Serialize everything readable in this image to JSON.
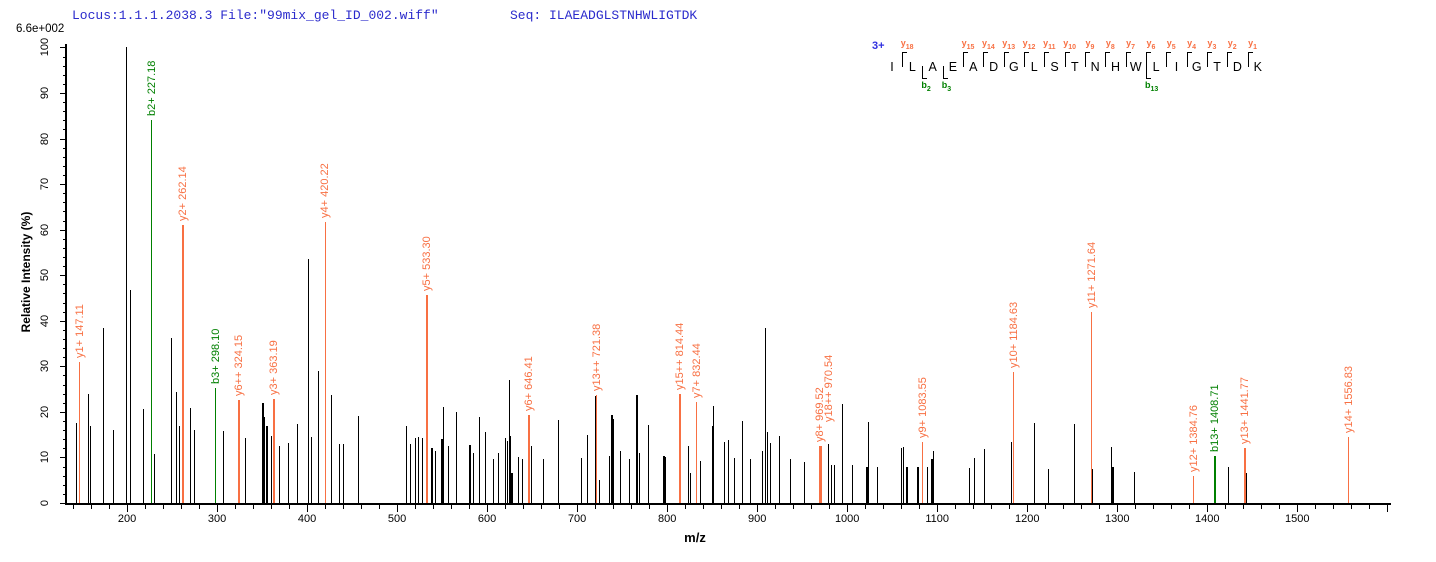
{
  "header": {
    "locus_file": "Locus:1.1.1.2038.3 File:\"99mix_gel_ID_002.wiff\"",
    "seq_line": "Seq: ILAEADGLSTNHWLIGTDK"
  },
  "colors": {
    "y_ion": "#F87043",
    "b_ion": "#008000",
    "header_blue": "#2B2BCC",
    "charge_blue": "#3030E0",
    "axis": "#000000"
  },
  "ladder": {
    "charge": "3+",
    "residues": "ILAEADGLSTNHWLIGTDK",
    "gaps": [
      {
        "y": "y18"
      },
      {
        "b": "b2"
      },
      {
        "b": "b3"
      },
      {
        "y": "y15"
      },
      {
        "y": "y14"
      },
      {
        "y": "y13"
      },
      {
        "y": "y12"
      },
      {
        "y": "y11"
      },
      {
        "y": "y10"
      },
      {
        "y": "y9"
      },
      {
        "y": "y8"
      },
      {
        "y": "y7"
      },
      {
        "y": "y6",
        "b": "b13"
      },
      {
        "y": "y5"
      },
      {
        "y": "y4"
      },
      {
        "y": "y3"
      },
      {
        "y": "y2"
      },
      {
        "y": "y1"
      }
    ]
  },
  "chart_data": {
    "type": "bar",
    "subtype": "ms2-stick-spectrum",
    "title": "",
    "xlabel": "m/z",
    "ylabel": "Relative  Intensity (%)",
    "xlim": [
      133,
      1603
    ],
    "ylim": [
      0,
      100
    ],
    "max_intensity_note": "6.6e+002",
    "x_major_ticks": [
      200,
      300,
      400,
      500,
      600,
      700,
      800,
      900,
      1000,
      1100,
      1200,
      1300,
      1400,
      1500
    ],
    "x_minor_step": 20,
    "y_major_ticks": [
      0,
      10,
      20,
      30,
      40,
      50,
      60,
      70,
      80,
      90,
      100
    ],
    "y_minor_step": 2,
    "grid": false,
    "labeled_peaks": [
      {
        "ion": "y1+",
        "label": "y1+ 147.11",
        "mz": 147.11,
        "intensity": 31,
        "series": "y"
      },
      {
        "ion": "b2+",
        "label": "b2+ 227.18",
        "mz": 227.18,
        "intensity": 84,
        "series": "b"
      },
      {
        "ion": "y2+",
        "label": "y2+ 262.14",
        "mz": 262.14,
        "intensity": 61,
        "series": "y"
      },
      {
        "ion": "b3+",
        "label": "b3+ 298.10",
        "mz": 298.1,
        "intensity": 25.3,
        "series": "b"
      },
      {
        "ion": "y6++",
        "label": "y6++ 324.15",
        "mz": 324.15,
        "intensity": 22.5,
        "series": "y"
      },
      {
        "ion": "y3+",
        "label": "y3+ 363.19",
        "mz": 363.19,
        "intensity": 22.8,
        "series": "y"
      },
      {
        "ion": "y4+",
        "label": "y4+ 420.22",
        "mz": 420.22,
        "intensity": 61.7,
        "series": "y"
      },
      {
        "ion": "y5+",
        "label": "y5+ 533.30",
        "mz": 533.3,
        "intensity": 45.7,
        "series": "y"
      },
      {
        "ion": "y6+",
        "label": "y6+ 646.41",
        "mz": 646.41,
        "intensity": 19.3,
        "series": "y"
      },
      {
        "ion": "y13++",
        "label": "y13++ 721.38",
        "mz": 721.38,
        "intensity": 23.8,
        "series": "y"
      },
      {
        "ion": "y15++",
        "label": "y15++ 814.44",
        "mz": 814.44,
        "intensity": 23.9,
        "series": "y"
      },
      {
        "ion": "y7+",
        "label": "y7+ 832.44",
        "mz": 832.44,
        "intensity": 22.1,
        "series": "y"
      },
      {
        "ion": "y8+",
        "label": "y8+ 969.52",
        "mz": 969.52,
        "intensity": 12.5,
        "series": "y",
        "width": 2
      },
      {
        "ion": "y18++",
        "label": "y18++ 970.54",
        "mz": 970.54,
        "intensity": 12.5,
        "series": "y",
        "width": 2
      },
      {
        "ion": "y9+",
        "label": "y9+ 1083.55",
        "mz": 1083.55,
        "intensity": 13.3,
        "series": "y"
      },
      {
        "ion": "y10+",
        "label": "y10+ 1184.63",
        "mz": 1184.63,
        "intensity": 28.7,
        "series": "y"
      },
      {
        "ion": "y11+",
        "label": "y11+ 1271.64",
        "mz": 1271.64,
        "intensity": 42,
        "series": "y"
      },
      {
        "ion": "y12+",
        "label": "y12+ 1384.76",
        "mz": 1384.76,
        "intensity": 5.9,
        "series": "y"
      },
      {
        "ion": "b13+",
        "label": "b13+ 1408.71",
        "mz": 1408.71,
        "intensity": 10.3,
        "series": "b"
      },
      {
        "ion": "y13+",
        "label": "y13+ 1441.77",
        "mz": 1441.77,
        "intensity": 12.1,
        "series": "y"
      },
      {
        "ion": "y14+",
        "label": "y14+ 1556.83",
        "mz": 1556.83,
        "intensity": 14.4,
        "series": "y"
      }
    ],
    "unlabeled_peaks": [
      [
        144.4,
        17.6
      ],
      [
        157.3,
        24
      ],
      [
        159.9,
        17
      ],
      [
        174,
        38.4
      ],
      [
        185.1,
        16
      ],
      [
        199.9,
        100
      ],
      [
        203.7,
        46.7
      ],
      [
        218.1,
        20.6
      ],
      [
        230,
        10.7
      ],
      [
        248.9,
        36.2
      ],
      [
        254.8,
        24.4
      ],
      [
        258.2,
        17
      ],
      [
        270.4,
        20.8
      ],
      [
        274.9,
        16.1
      ],
      [
        307.5,
        15.9
      ],
      [
        331.6,
        14.2
      ],
      [
        351.5,
        22,
        2
      ],
      [
        353,
        18.9
      ],
      [
        355,
        17,
        2
      ],
      [
        360.2,
        14.6
      ],
      [
        369.8,
        12.5
      ],
      [
        379.8,
        13.1
      ],
      [
        389.1,
        17.4
      ],
      [
        401.5,
        53.5
      ],
      [
        404.7,
        14.4
      ],
      [
        413.1,
        28.9
      ],
      [
        426.9,
        23.7
      ],
      [
        436.5,
        12.9
      ],
      [
        440.3,
        12.9
      ],
      [
        457.6,
        19
      ],
      [
        510.7,
        16.9
      ],
      [
        515.1,
        13
      ],
      [
        519.9,
        14.2
      ],
      [
        523.6,
        14.4
      ],
      [
        528.4,
        14.2
      ],
      [
        539.1,
        12,
        2
      ],
      [
        542.7,
        11.5
      ],
      [
        549.8,
        14,
        2
      ],
      [
        551.5,
        21
      ],
      [
        556.9,
        12.5
      ],
      [
        566,
        20
      ],
      [
        581,
        12.7,
        2
      ],
      [
        585.4,
        11
      ],
      [
        591.5,
        18.8
      ],
      [
        598.5,
        15.5
      ],
      [
        606.8,
        9.6
      ],
      [
        612.5,
        10.9
      ],
      [
        620.3,
        14.2
      ],
      [
        622.5,
        13.5
      ],
      [
        624.6,
        27
      ],
      [
        626.5,
        14.6
      ],
      [
        628,
        6.5,
        2
      ],
      [
        635.4,
        10
      ],
      [
        639,
        9.6
      ],
      [
        649.5,
        12.5
      ],
      [
        662.4,
        9.6
      ],
      [
        679.8,
        18.2
      ],
      [
        705,
        9.9
      ],
      [
        711.3,
        14.9
      ],
      [
        720.3,
        23.5
      ],
      [
        724.3,
        5.1
      ],
      [
        736,
        10.3
      ],
      [
        738.8,
        19.3,
        2
      ],
      [
        740.6,
        18.4
      ],
      [
        748.3,
        11.4
      ],
      [
        757.7,
        9.6
      ],
      [
        766.9,
        23.8,
        2
      ],
      [
        769.2,
        11
      ],
      [
        778.9,
        17.1
      ],
      [
        796.8,
        10.3,
        2
      ],
      [
        798.5,
        10
      ],
      [
        823.2,
        12.5
      ],
      [
        825.4,
        6.6
      ],
      [
        837.5,
        9.2
      ],
      [
        850.4,
        16.8,
        2
      ],
      [
        852,
        21.4
      ],
      [
        863.4,
        13.4
      ],
      [
        868.2,
        13.8
      ],
      [
        874.5,
        9.9
      ],
      [
        883.8,
        18.1
      ],
      [
        893.1,
        9.7
      ],
      [
        906.2,
        11.4
      ],
      [
        908.8,
        38.4
      ],
      [
        911.8,
        15.6
      ],
      [
        914.7,
        13.1
      ],
      [
        924.8,
        14.7
      ],
      [
        937.1,
        9.7
      ],
      [
        952.8,
        9
      ],
      [
        979.3,
        12.9
      ],
      [
        982.3,
        8.4
      ],
      [
        986,
        8.4
      ],
      [
        995.3,
        21.8
      ],
      [
        1006.4,
        8.4
      ],
      [
        1022.4,
        8,
        2
      ],
      [
        1023.9,
        17.7
      ],
      [
        1034,
        8
      ],
      [
        1060,
        12
      ],
      [
        1062.1,
        12.4
      ],
      [
        1066.6,
        8,
        2
      ],
      [
        1078.8,
        7.8,
        2
      ],
      [
        1088.7,
        7.9
      ],
      [
        1094.6,
        9.6,
        2
      ],
      [
        1096.4,
        11.5
      ],
      [
        1136.1,
        7.6
      ],
      [
        1141.7,
        9.9
      ],
      [
        1152.8,
        11.9
      ],
      [
        1182.5,
        13.3
      ],
      [
        1208.5,
        17.6
      ],
      [
        1223.4,
        7.4
      ],
      [
        1253,
        17.4
      ],
      [
        1272.5,
        7.4,
        2
      ],
      [
        1294,
        12.4
      ],
      [
        1295.5,
        7.8,
        2
      ],
      [
        1319.7,
        6.7
      ],
      [
        1424,
        7.9
      ],
      [
        1443,
        6.6,
        2
      ]
    ]
  }
}
